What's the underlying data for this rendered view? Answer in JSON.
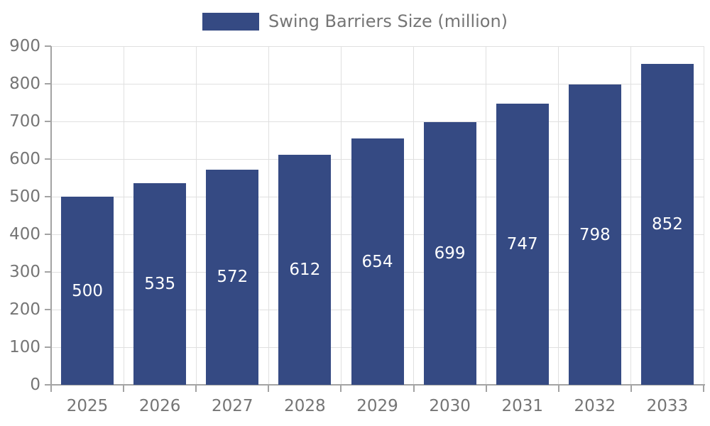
{
  "legend": {
    "label": "Swing Barriers Size (million)"
  },
  "chart_data": {
    "type": "bar",
    "title": "Swing Barriers Size (million)",
    "categories": [
      "2025",
      "2026",
      "2027",
      "2028",
      "2029",
      "2030",
      "2031",
      "2032",
      "2033"
    ],
    "values": [
      500,
      535,
      572,
      612,
      654,
      699,
      747,
      798,
      852
    ],
    "value_labels": [
      "500",
      "535",
      "572",
      "612",
      "654",
      "699",
      "747",
      "798",
      "852"
    ],
    "yticks": [
      0,
      100,
      200,
      300,
      400,
      500,
      600,
      700,
      800,
      900
    ],
    "ylim": [
      0,
      900
    ],
    "xlabel": "",
    "ylabel": "",
    "grid": "on",
    "legend_position": "top-center",
    "bar_color": "#354a83",
    "value_label_color": "#ffffff",
    "axis_text_color": "#757575",
    "gridline_color": "#e0e0e0",
    "axis_line_color": "#a3a3a3"
  }
}
